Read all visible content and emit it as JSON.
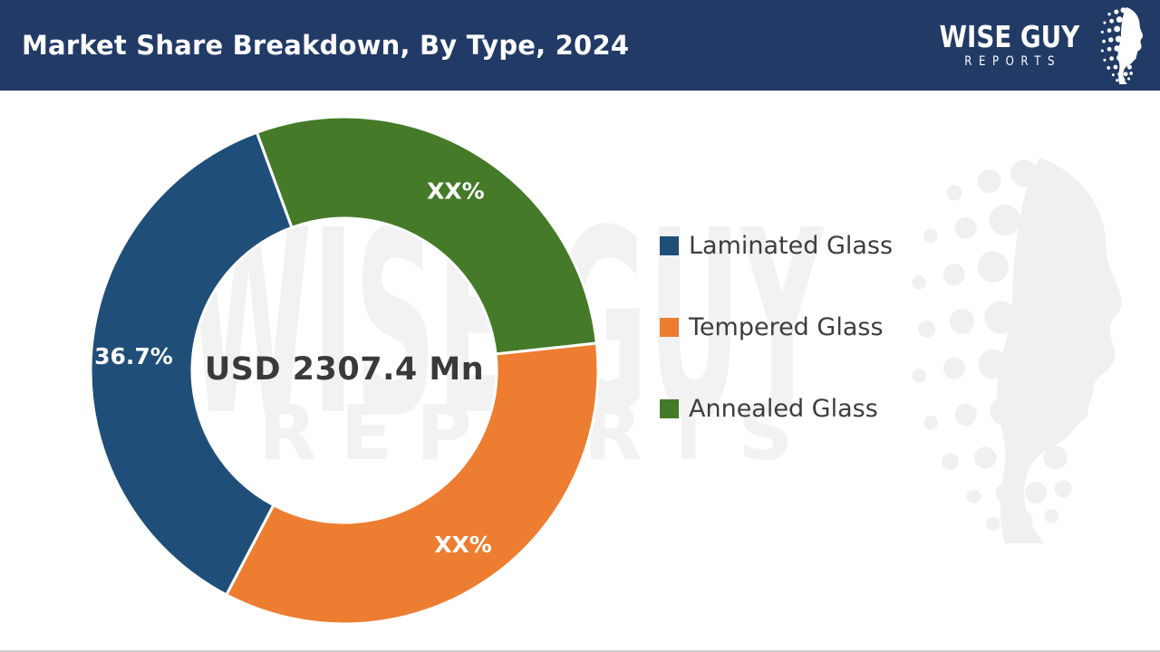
{
  "header": {
    "title": "Market Share Breakdown, By Type, 2024",
    "logo": {
      "wordmark": "WISE GUY",
      "subtitle": "REPORTS"
    }
  },
  "watermark": {
    "line1": "WISE GUY",
    "line2": "REPORTS"
  },
  "chart_data": {
    "type": "donut",
    "title": "Market Share Breakdown, By Type, 2024",
    "center_label": "USD 2307.4 Mn",
    "legend_position": "right",
    "start_angle_deg": 207.7,
    "draw_sequence": [
      0,
      2,
      1
    ],
    "segments": [
      {
        "name": "Laminated Glass",
        "value_pct": 36.7,
        "display_label": "36.7%",
        "color": "#1F4E79"
      },
      {
        "name": "Tempered Glass",
        "value_pct": 34.4,
        "display_label": "XX%",
        "color": "#ED7D31"
      },
      {
        "name": "Annealed Glass",
        "value_pct": 28.9,
        "display_label": "XX%",
        "color": "#447A28"
      }
    ]
  },
  "colors": {
    "header_bg": "#213A66",
    "center_text": "#3A3A3A",
    "legend_text": "#3D3D3D",
    "watermark": "#F2F2F2",
    "bottom_border": "#CFCFCF"
  }
}
